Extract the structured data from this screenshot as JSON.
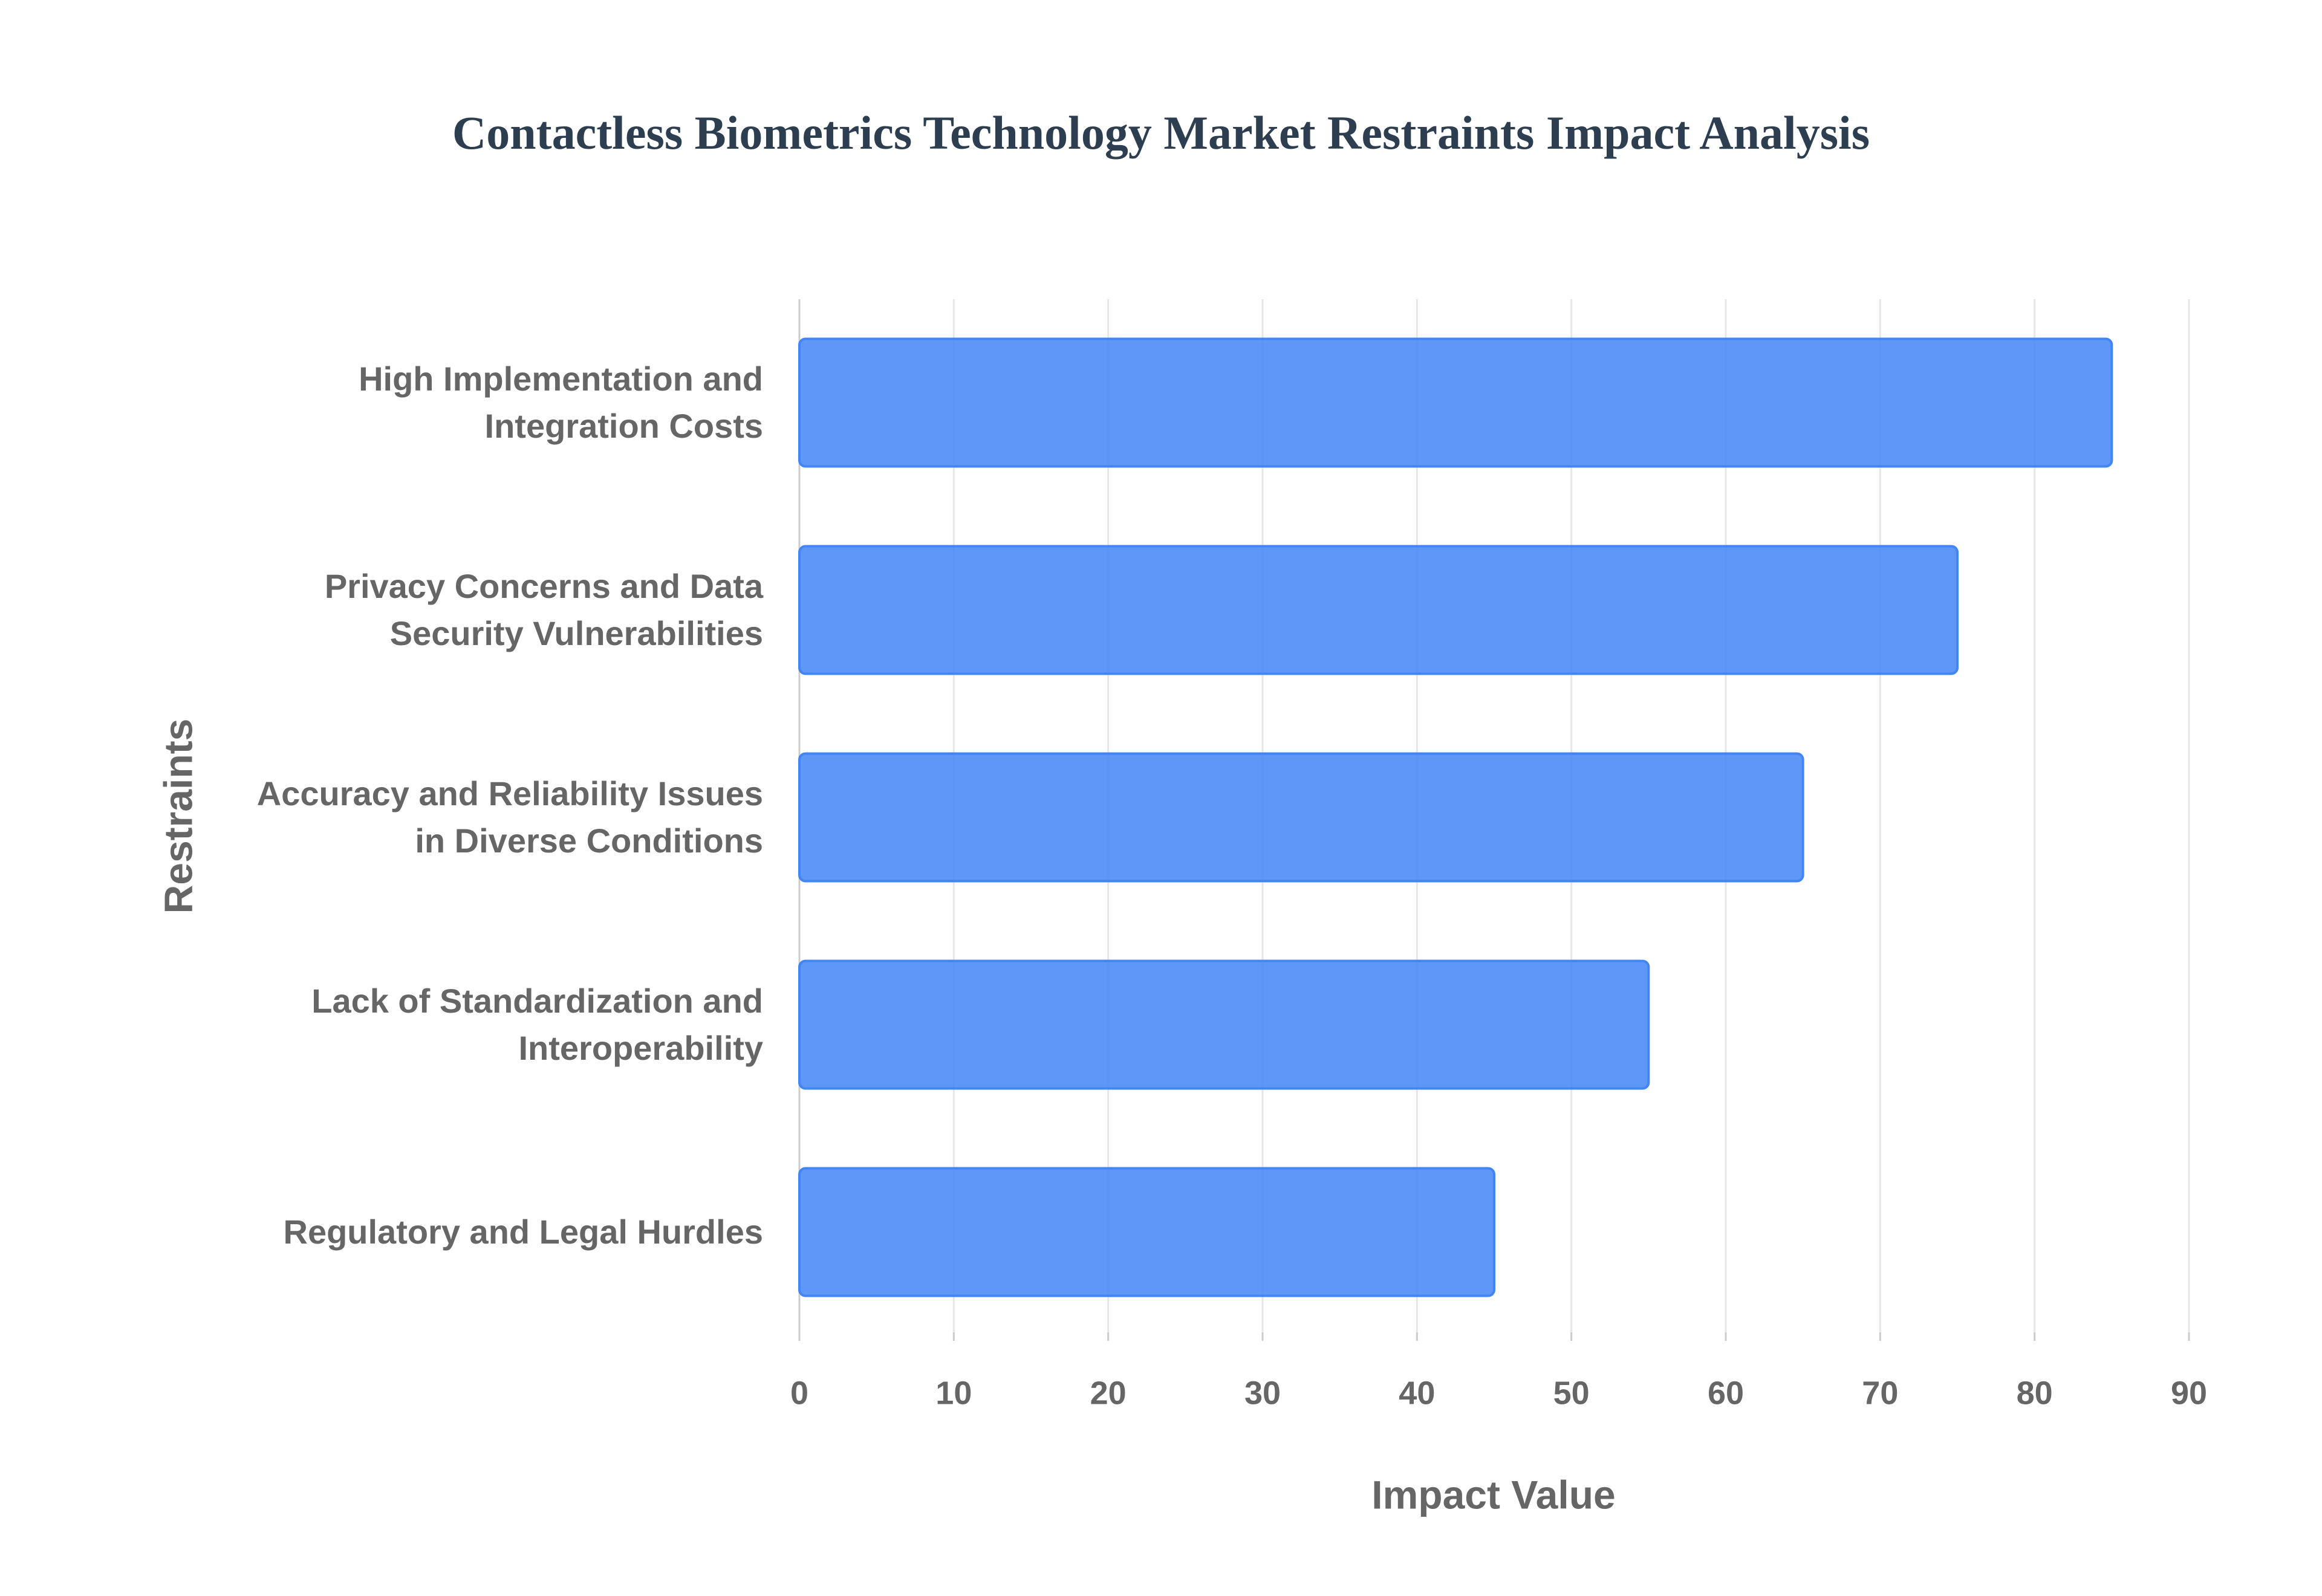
{
  "chart_data": {
    "type": "bar",
    "orientation": "horizontal",
    "title": "Contactless Biometrics Technology Market Restraints Impact Analysis",
    "x_label": "Impact Value",
    "y_label": "Restraints",
    "categories": [
      "High Implementation and Integration Costs",
      "Privacy Concerns and Data Security Vulnerabilities",
      "Accuracy and Reliability Issues in Diverse Conditions",
      "Lack of Standardization and Interoperability",
      "Regulatory and Legal Hurdles"
    ],
    "values": [
      85,
      75,
      65,
      55,
      45
    ],
    "color": "#4285f4",
    "xlim": [
      0,
      90
    ],
    "xticks": [
      0,
      10,
      20,
      30,
      40,
      50,
      60,
      70,
      80,
      90
    ],
    "grid": true
  }
}
